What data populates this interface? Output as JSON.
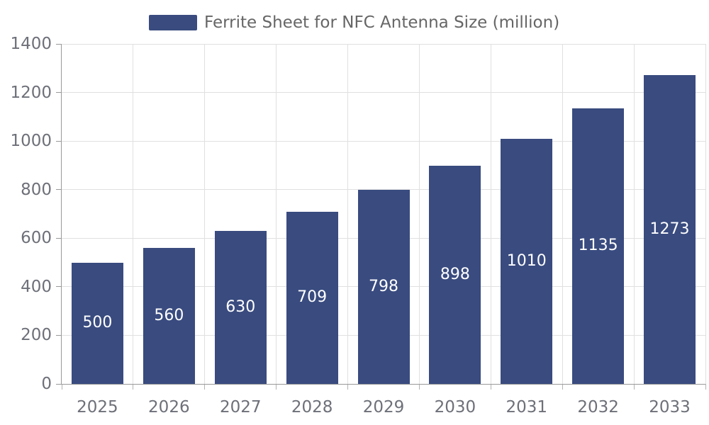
{
  "chart_data": {
    "type": "bar",
    "title": "Ferrite Sheet for NFC Antenna Size (million)",
    "categories": [
      "2025",
      "2026",
      "2027",
      "2028",
      "2029",
      "2030",
      "2031",
      "2032",
      "2033"
    ],
    "series": [
      {
        "name": "Ferrite Sheet for NFC Antenna Size (million)",
        "values": [
          500,
          560,
          630,
          709,
          798,
          898,
          1010,
          1135,
          1273
        ]
      }
    ],
    "xlabel": "",
    "ylabel": "",
    "ylim": [
      0,
      1400
    ],
    "yticks": [
      0,
      200,
      400,
      600,
      800,
      1000,
      1200,
      1400
    ],
    "grid": true,
    "legend_position": "top-center",
    "value_labels": "inside-center"
  },
  "legend": {
    "label": "Ferrite Sheet for NFC Antenna Size (million)"
  },
  "colors": {
    "bar": "#394B7F",
    "bar_value_label": "#FFFFFF",
    "axis_line": "#999999",
    "tick": "#B3B3B3",
    "grid_line": "#E0E0E0",
    "axis_label": "#6E7079",
    "legend_text": "#666666",
    "background": "#FFFFFF"
  }
}
